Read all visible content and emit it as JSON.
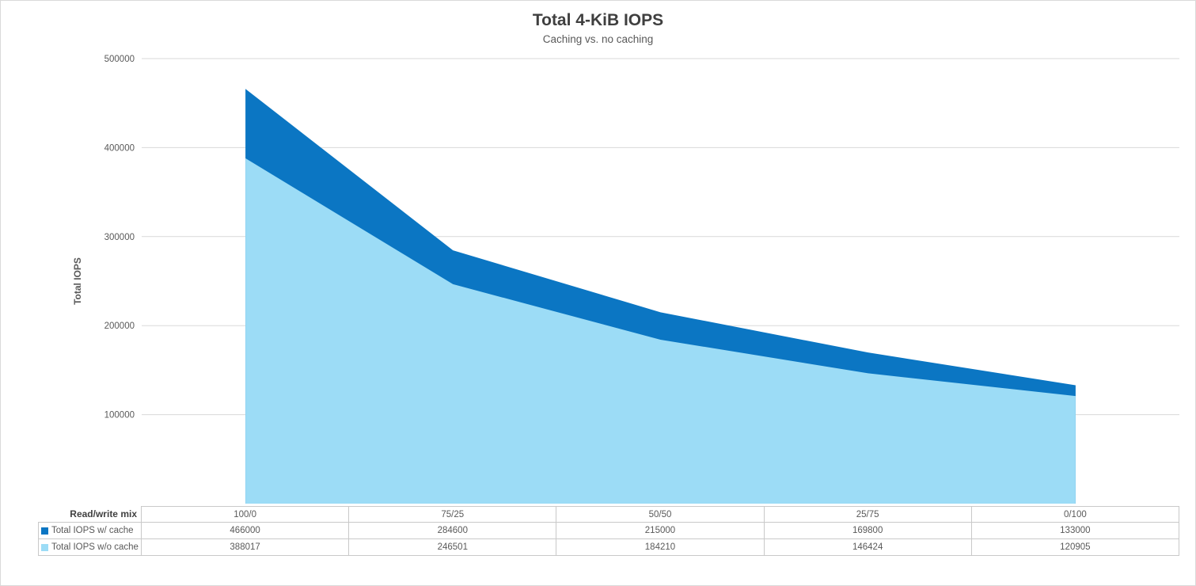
{
  "window": {
    "background": "#ffffff",
    "border_color": "#d9d9d9"
  },
  "chart": {
    "title": "Total 4-KiB IOPS",
    "subtitle": "Caching vs. no caching",
    "y_axis_title": "Total IOPS",
    "gridline_color": "#d9d9d9",
    "tick_label_color": "#595959"
  },
  "chart_data": {
    "type": "area",
    "title": "Total 4-KiB IOPS",
    "subtitle": "Caching vs. no caching",
    "xlabel": "Read/write mix",
    "ylabel": "Total IOPS",
    "categories": [
      "100/0",
      "75/25",
      "50/50",
      "25/75",
      "0/100"
    ],
    "series": [
      {
        "name": "Total IOPS w/ cache",
        "color": "#0b76c3",
        "values": [
          466000,
          284600,
          215000,
          169800,
          133000
        ]
      },
      {
        "name": "Total IOPS w/o cache",
        "color": "#9cdcf6",
        "values": [
          388017,
          246501,
          184210,
          146424,
          120905
        ]
      }
    ],
    "ylim": [
      0,
      500000
    ],
    "yticks": [
      100000,
      200000,
      300000,
      400000,
      500000
    ],
    "grid": true,
    "legend_position": "data-table",
    "overlap": true
  },
  "data_table": {
    "corner_label": "Read/write mix",
    "columns": [
      "100/0",
      "75/25",
      "50/50",
      "25/75",
      "0/100"
    ],
    "rows": [
      {
        "label": "Total IOPS w/ cache",
        "marker_color": "#0b76c3",
        "values": [
          "466000",
          "284600",
          "215000",
          "169800",
          "133000"
        ]
      },
      {
        "label": "Total IOPS w/o cache",
        "marker_color": "#9cdcf6",
        "values": [
          "388017",
          "246501",
          "184210",
          "146424",
          "120905"
        ]
      }
    ],
    "border_color": "#c9c9c9"
  }
}
